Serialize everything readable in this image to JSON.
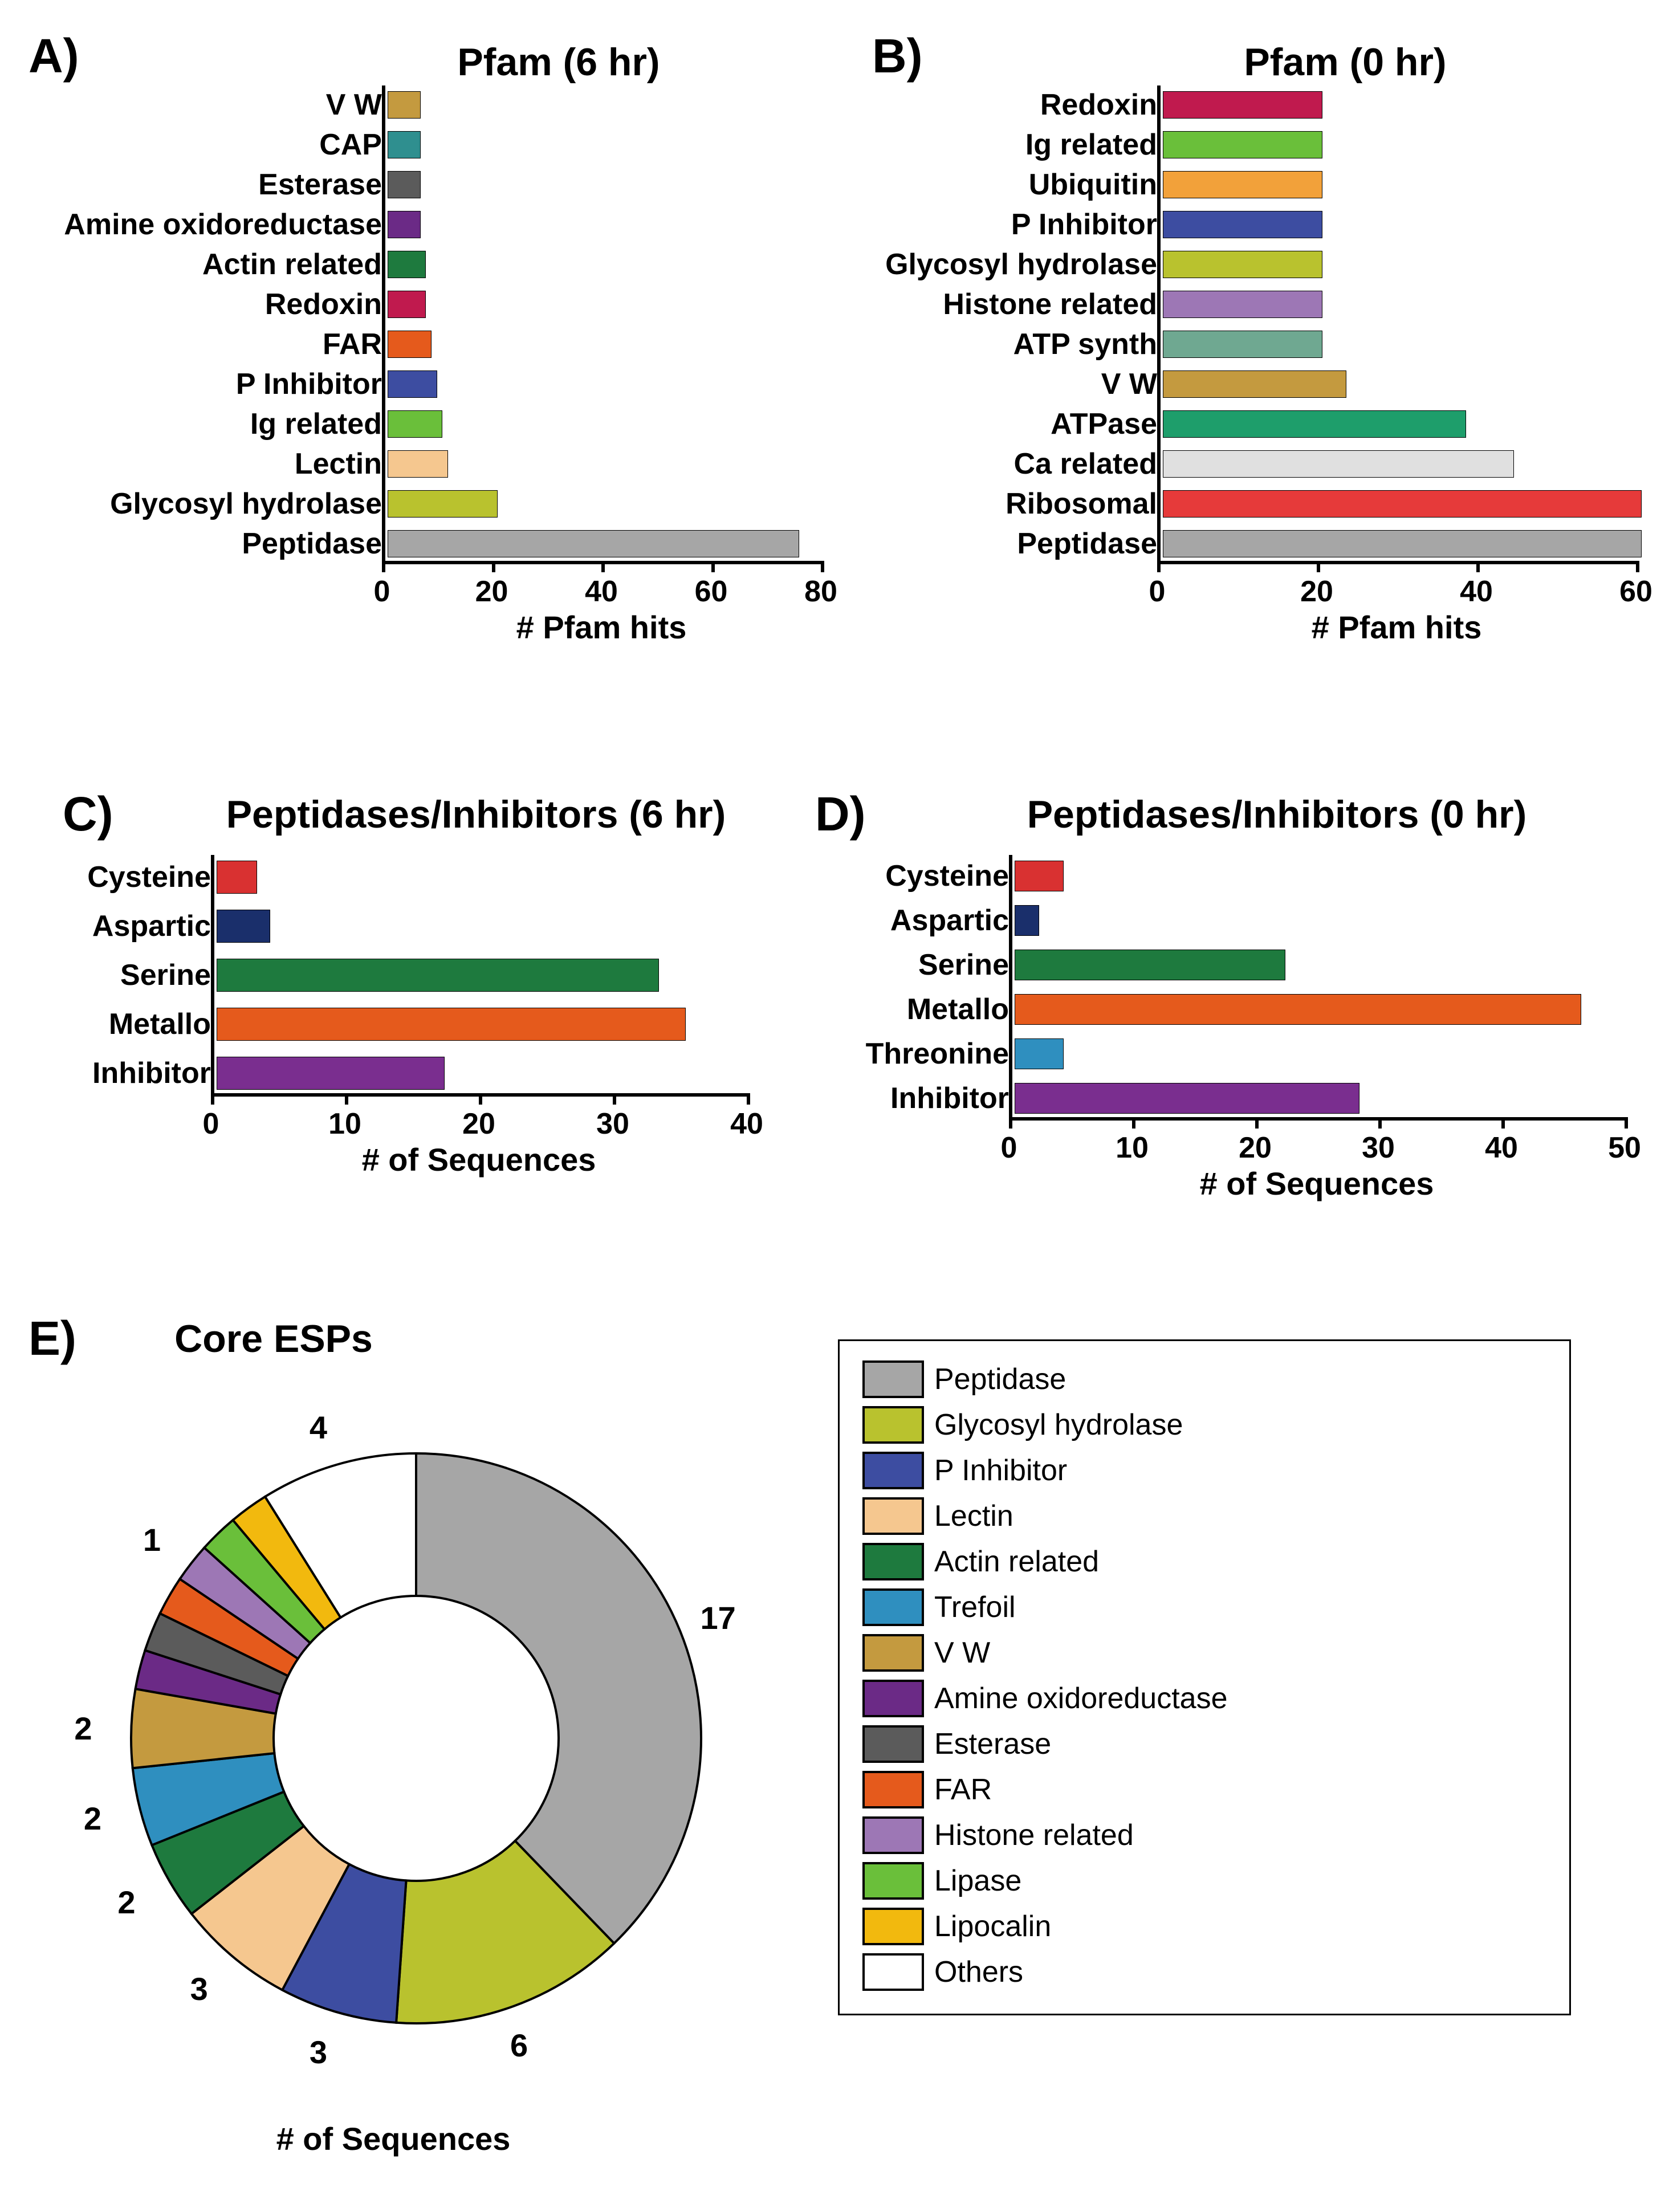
{
  "figure_width": 2928,
  "figure_height": 3881,
  "background_color": "#ffffff",
  "text_color": "#000000",
  "panel_label_fontsize": 84,
  "title_fontsize": 68,
  "category_label_fontsize": 52,
  "tick_label_fontsize": 52,
  "axis_title_fontsize": 56,
  "legend_fontsize": 52,
  "donut_value_fontsize": 56,
  "colors": {
    "peptidase": "#a6a6a6",
    "glycosyl_hydrolase": "#b9c22e",
    "p_inhibitor": "#3d4da1",
    "lectin": "#f5c78f",
    "actin_related": "#1e7a3e",
    "trefoil": "#2f8fbf",
    "vw": "#c49a3f",
    "amine_oxido": "#6b2a86",
    "esterase": "#5b5b5b",
    "far": "#e55a1c",
    "histone_related": "#9d77b5",
    "lipase": "#6abf3a",
    "lipocalin": "#f2b90e",
    "others": "#ffffff",
    "redoxin": "#c01a4e",
    "ig_related": "#6abf3a",
    "cap": "#2f8f8f",
    "cysteine": "#d93131",
    "aspartic": "#1a2f6b",
    "serine": "#1e7a3e",
    "metallo": "#e55a1c",
    "threonine": "#2f8fbf",
    "inhibitor": "#7a2e8f",
    "ubiquitin": "#f2a13a",
    "atp_synth": "#6fa891",
    "atpase": "#1e9e6b",
    "ca_related": "#e0e0e0",
    "ribosomal": "#e63a3a"
  },
  "panelA": {
    "label": "A)",
    "title": "Pfam (6 hr)",
    "xlabel": "# Pfam hits",
    "xlim": 80,
    "xticks": [
      0,
      20,
      40,
      60,
      80
    ],
    "bars": [
      {
        "label": "V W",
        "value": 6,
        "color_key": "vw"
      },
      {
        "label": "CAP",
        "value": 6,
        "color_key": "cap"
      },
      {
        "label": "Esterase",
        "value": 6,
        "color_key": "esterase"
      },
      {
        "label": "Amine oxidoreductase",
        "value": 6,
        "color_key": "amine_oxido"
      },
      {
        "label": "Actin related",
        "value": 7,
        "color_key": "actin_related"
      },
      {
        "label": "Redoxin",
        "value": 7,
        "color_key": "redoxin"
      },
      {
        "label": "FAR",
        "value": 8,
        "color_key": "far"
      },
      {
        "label": "P Inhibitor",
        "value": 9,
        "color_key": "p_inhibitor"
      },
      {
        "label": "Ig related",
        "value": 10,
        "color_key": "ig_related"
      },
      {
        "label": "Lectin",
        "value": 11,
        "color_key": "lectin"
      },
      {
        "label": "Glycosyl hydrolase",
        "value": 20,
        "color_key": "glycosyl_hydrolase"
      },
      {
        "label": "Peptidase",
        "value": 75,
        "color_key": "peptidase"
      }
    ]
  },
  "panelB": {
    "label": "B)",
    "title": "Pfam (0 hr)",
    "xlabel": "# Pfam hits",
    "xlim": 60,
    "xticks": [
      0,
      20,
      40,
      60
    ],
    "bars": [
      {
        "label": "Redoxin",
        "value": 20,
        "color_key": "redoxin"
      },
      {
        "label": "Ig related",
        "value": 20,
        "color_key": "ig_related"
      },
      {
        "label": "Ubiquitin",
        "value": 20,
        "color_key": "ubiquitin"
      },
      {
        "label": "P Inhibitor",
        "value": 20,
        "color_key": "p_inhibitor"
      },
      {
        "label": "Glycosyl hydrolase",
        "value": 20,
        "color_key": "glycosyl_hydrolase"
      },
      {
        "label": "Histone related",
        "value": 20,
        "color_key": "histone_related"
      },
      {
        "label": "ATP synth",
        "value": 20,
        "color_key": "atp_synth"
      },
      {
        "label": "V W",
        "value": 23,
        "color_key": "vw"
      },
      {
        "label": "ATPase",
        "value": 38,
        "color_key": "atpase"
      },
      {
        "label": "Ca related",
        "value": 44,
        "color_key": "ca_related"
      },
      {
        "label": "Ribosomal",
        "value": 60,
        "color_key": "ribosomal"
      },
      {
        "label": "Peptidase",
        "value": 60,
        "color_key": "peptidase"
      }
    ]
  },
  "panelC": {
    "label": "C)",
    "title": "Peptidases/Inhibitors (6 hr)",
    "xlabel": "# of Sequences",
    "xlim": 40,
    "xticks": [
      0,
      10,
      20,
      30,
      40
    ],
    "bars": [
      {
        "label": "Cysteine",
        "value": 3,
        "color_key": "cysteine"
      },
      {
        "label": "Aspartic",
        "value": 4,
        "color_key": "aspartic"
      },
      {
        "label": "Serine",
        "value": 33,
        "color_key": "serine"
      },
      {
        "label": "Metallo",
        "value": 35,
        "color_key": "metallo"
      },
      {
        "label": "Inhibitor",
        "value": 17,
        "color_key": "inhibitor"
      }
    ]
  },
  "panelD": {
    "label": "D)",
    "title": "Peptidases/Inhibitors (0 hr)",
    "xlabel": "# of Sequences",
    "xlim": 50,
    "xticks": [
      0,
      10,
      20,
      30,
      40,
      50
    ],
    "bars": [
      {
        "label": "Cysteine",
        "value": 4,
        "color_key": "cysteine"
      },
      {
        "label": "Aspartic",
        "value": 2,
        "color_key": "aspartic"
      },
      {
        "label": "Serine",
        "value": 22,
        "color_key": "serine"
      },
      {
        "label": "Metallo",
        "value": 46,
        "color_key": "metallo"
      },
      {
        "label": "Threonine",
        "value": 4,
        "color_key": "threonine"
      },
      {
        "label": "Inhibitor",
        "value": 28,
        "color_key": "inhibitor"
      }
    ]
  },
  "panelE": {
    "label": "E)",
    "title": "Core ESPs",
    "xlabel": "# of Sequences",
    "stroke_color": "#000000",
    "stroke_width": 4,
    "slices": [
      {
        "label": "Peptidase",
        "value": 17,
        "color_key": "peptidase",
        "show_value": true,
        "value_pos": "right"
      },
      {
        "label": "Glycosyl hydrolase",
        "value": 6,
        "color_key": "glycosyl_hydrolase",
        "show_value": true,
        "value_pos": "bottom"
      },
      {
        "label": "P Inhibitor",
        "value": 3,
        "color_key": "p_inhibitor",
        "show_value": true,
        "value_pos": "bottom"
      },
      {
        "label": "Lectin",
        "value": 3,
        "color_key": "lectin",
        "show_value": true,
        "value_pos": "bottomleft"
      },
      {
        "label": "Actin related",
        "value": 2,
        "color_key": "actin_related",
        "show_value": true,
        "value_pos": "left"
      },
      {
        "label": "Trefoil",
        "value": 2,
        "color_key": "trefoil",
        "show_value": true,
        "value_pos": "left"
      },
      {
        "label": "V W",
        "value": 2,
        "color_key": "vw",
        "show_value": true,
        "value_pos": "left"
      },
      {
        "label": "Amine oxidoreductase",
        "value": 1,
        "color_key": "amine_oxido",
        "show_value": false
      },
      {
        "label": "Esterase",
        "value": 1,
        "color_key": "esterase",
        "show_value": false
      },
      {
        "label": "FAR",
        "value": 1,
        "color_key": "far",
        "show_value": false
      },
      {
        "label": "Histone related",
        "value": 1,
        "color_key": "histone_related",
        "show_value": true,
        "value_pos": "topleft"
      },
      {
        "label": "Lipase",
        "value": 1,
        "color_key": "lipase",
        "show_value": false
      },
      {
        "label": "Lipocalin",
        "value": 1,
        "color_key": "lipocalin",
        "show_value": false
      },
      {
        "label": "Others",
        "value": 4,
        "color_key": "others",
        "show_value": true,
        "value_pos": "top"
      }
    ],
    "legend_order": [
      "peptidase",
      "glycosyl_hydrolase",
      "p_inhibitor",
      "lectin",
      "actin_related",
      "trefoil",
      "vw",
      "amine_oxido",
      "esterase",
      "far",
      "histone_related",
      "lipase",
      "lipocalin",
      "others"
    ],
    "legend_labels": {
      "peptidase": "Peptidase",
      "glycosyl_hydrolase": "Glycosyl hydrolase",
      "p_inhibitor": "P Inhibitor",
      "lectin": "Lectin",
      "actin_related": "Actin related",
      "trefoil": "Trefoil",
      "vw": "V W",
      "amine_oxido": "Amine oxidoreductase",
      "esterase": "Esterase",
      "far": "FAR",
      "histone_related": "Histone related",
      "lipase": "Lipase",
      "lipocalin": "Lipocalin",
      "others": "Others"
    }
  }
}
